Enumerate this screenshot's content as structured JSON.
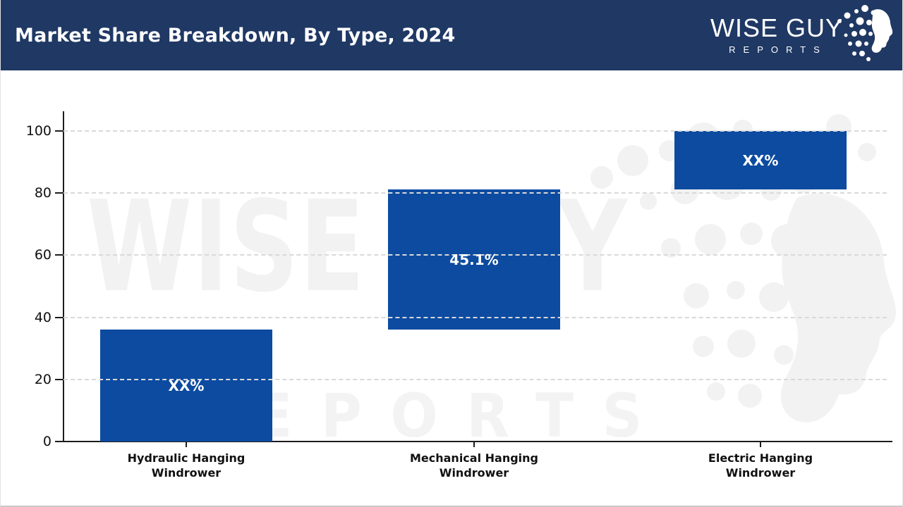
{
  "header": {
    "title": "Market Share Breakdown, By Type, 2024",
    "logo": {
      "wordmark": "WISE GUY",
      "subtitle": "REPORTS"
    }
  },
  "watermark": {
    "wordmark": "WISE GUY",
    "subtitle": "REPORTS"
  },
  "chart_data": {
    "type": "bar",
    "subtype": "waterfall-floating-bars",
    "title": "Market Share Breakdown, By Type, 2024",
    "categories": [
      {
        "lines": [
          "Hydraulic Hanging",
          "Windrower"
        ]
      },
      {
        "lines": [
          "Mechanical Hanging",
          "Windrower"
        ]
      },
      {
        "lines": [
          "Electric Hanging",
          "Windrower"
        ]
      }
    ],
    "values": [
      {
        "start": 0,
        "end": 36.0,
        "label": "XX%"
      },
      {
        "start": 36.0,
        "end": 81.1,
        "label": "45.1%"
      },
      {
        "start": 81.1,
        "end": 100,
        "label": "XX%"
      }
    ],
    "xlabel": "",
    "ylabel": "",
    "ylim": [
      0,
      100
    ],
    "yticks": [
      0,
      20,
      40,
      60,
      80,
      100
    ],
    "grid": "horizontal-dashed",
    "legend": "none",
    "bar_color": "#0c4ba0",
    "bar_label_color": "#ffffff"
  },
  "colors": {
    "header_bg": "#1f3864",
    "bar": "#0c4ba0",
    "grid": "#d9d9d9",
    "axis": "#1c1c1c",
    "text": "#111111",
    "watermark": "#f2f2f2",
    "page_border": "#c9c9c9"
  }
}
